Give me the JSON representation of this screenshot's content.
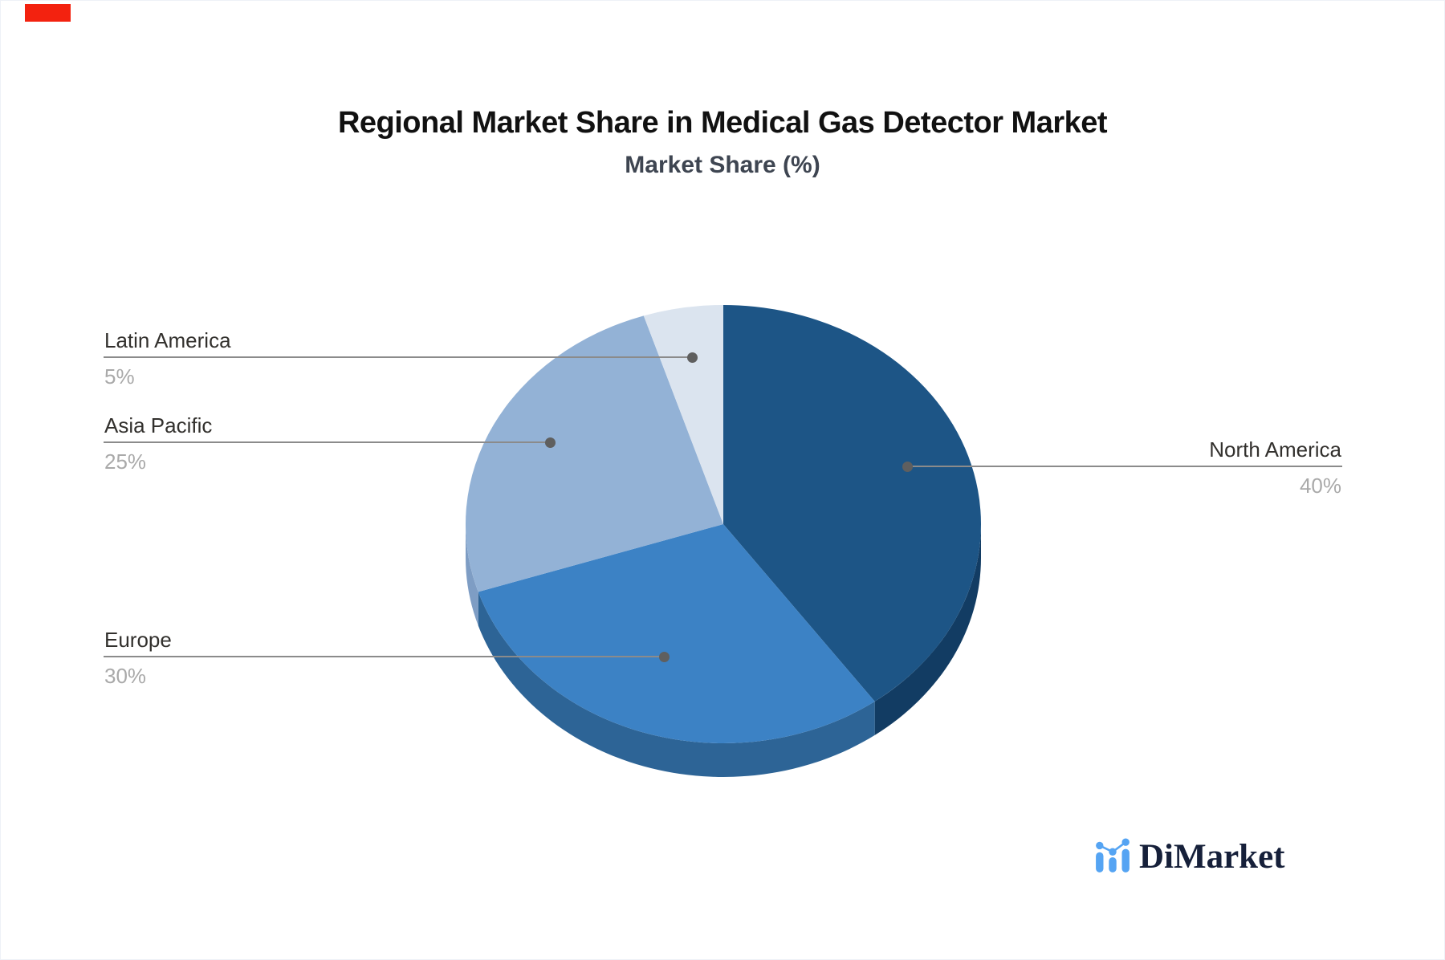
{
  "page": {
    "background_color": "#ffffff",
    "corner_marker_color": "#f3220f"
  },
  "chart": {
    "title": "Regional Market Share in Medical Gas Detector Market",
    "subtitle": "Market Share (%)",
    "title_color": "#111111",
    "subtitle_color": "#3e4551"
  },
  "chart_data": {
    "type": "pie",
    "title": "Regional Market Share in Medical Gas Detector Market",
    "subtitle": "Market Share (%)",
    "unit": "%",
    "style": "3d-pie",
    "start_angle_deg_from_top": 0,
    "direction": "clockwise",
    "categories": [
      "North America",
      "Europe",
      "Asia Pacific",
      "Latin America"
    ],
    "values": [
      40,
      30,
      25,
      5
    ],
    "slices": [
      {
        "label": "North America",
        "value": 40,
        "value_label": "40%",
        "color": "#1d5586",
        "side_color": "#123c63"
      },
      {
        "label": "Europe",
        "value": 30,
        "value_label": "30%",
        "color": "#3c82c5",
        "side_color": "#2d6496"
      },
      {
        "label": "Asia Pacific",
        "value": 25,
        "value_label": "25%",
        "color": "#93b2d6",
        "side_color": "#7e9dc4"
      },
      {
        "label": "Latin America",
        "value": 5,
        "value_label": "5%",
        "color": "#dbe4ef",
        "side_color": "#b9c8dd"
      }
    ],
    "callout_line_color": "#8b8b8b",
    "callout_dot_color": "#5f5f5f",
    "label_color": "#32302d",
    "value_color": "#a9a9a9",
    "legend_position": "callout-labels",
    "grid": false
  },
  "logo": {
    "text": "DiMarket",
    "icon": "bar-chart-with-trend-dots",
    "icon_color": "#55a4f3",
    "text_color": "#16203a"
  }
}
